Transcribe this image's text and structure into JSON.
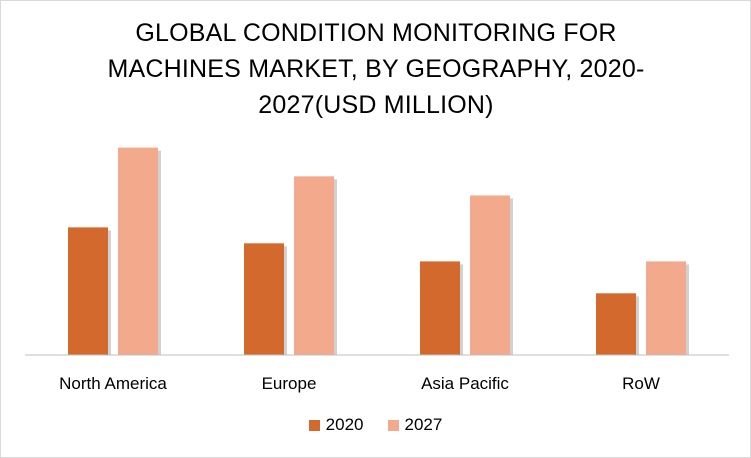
{
  "chart_data": {
    "type": "bar",
    "title": "GLOBAL CONDITION MONITORING FOR MACHINES MARKET, BY GEOGRAPHY, 2020-2027(USD MILLION)",
    "title_lines": [
      "GLOBAL CONDITION MONITORING FOR",
      "MACHINES MARKET, BY GEOGRAPHY, 2020-",
      "2027(USD MILLION)"
    ],
    "xlabel": "",
    "ylabel": "",
    "categories": [
      "North America",
      "Europe",
      "Asia Pacific",
      "RoW"
    ],
    "series": [
      {
        "name": "2020",
        "color": "#d4692e",
        "values": [
          120,
          105,
          88,
          58
        ]
      },
      {
        "name": "2027",
        "color": "#f2a98c",
        "values": [
          195,
          168,
          150,
          88
        ]
      }
    ],
    "ylim": [
      0,
      220
    ],
    "grid": false,
    "legend": "bottom"
  }
}
